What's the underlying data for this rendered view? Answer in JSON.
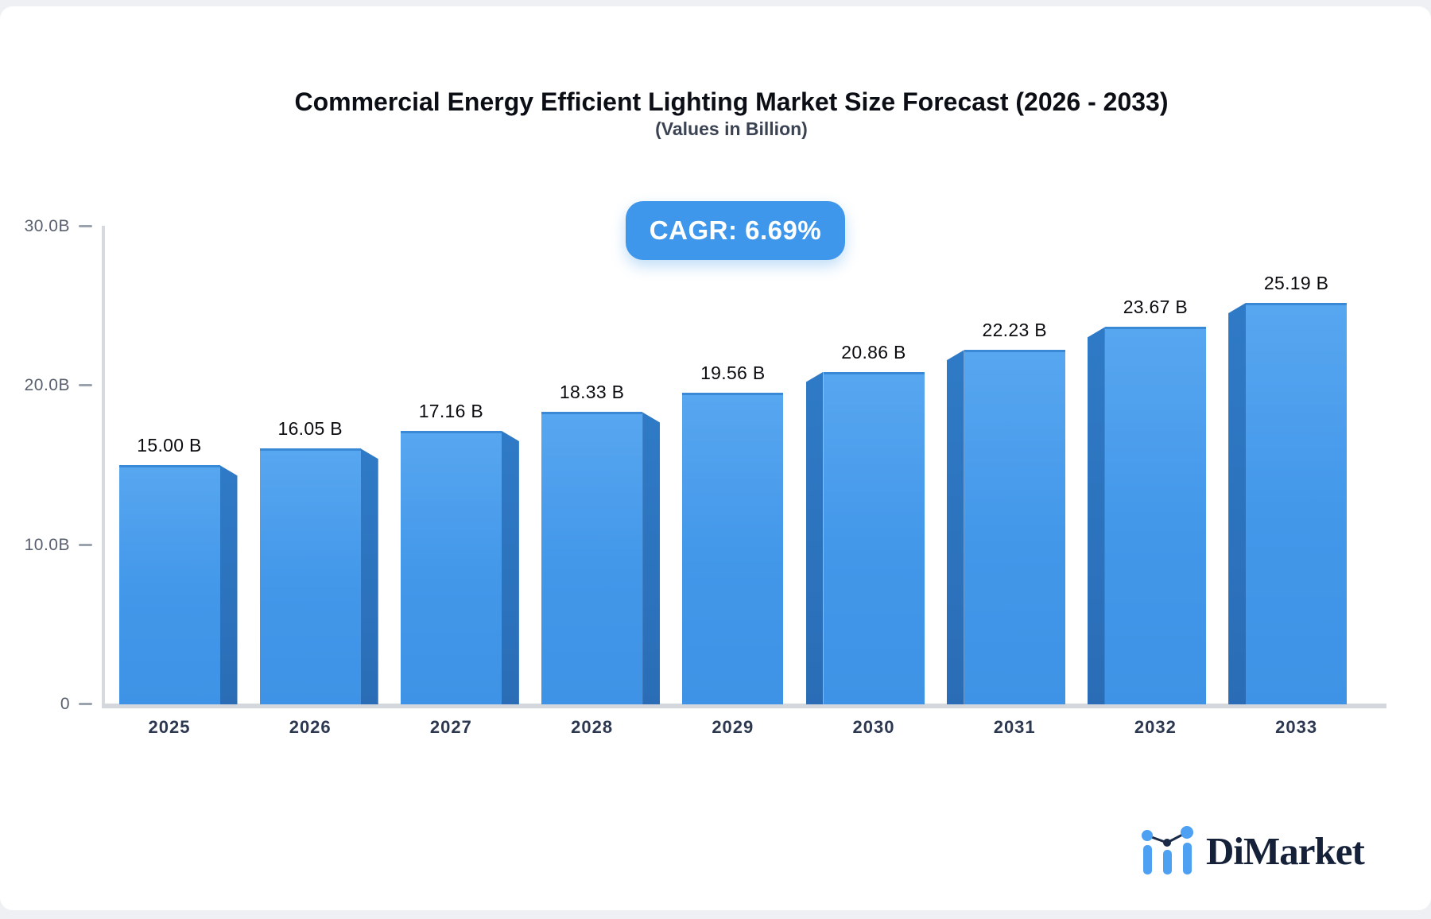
{
  "page": {
    "title": "Commercial Energy Efficient Lighting Market Size Forecast (2026 - 2033)",
    "subtitle": "(Values in Billion)",
    "badge_label": "CAGR: 6.69%"
  },
  "chart_data": {
    "type": "bar",
    "title": "Commercial Energy Efficient Lighting Market Size Forecast (2026 - 2033)",
    "subtitle": "(Values in Billion)",
    "cagr": "6.69%",
    "categories": [
      "2025",
      "2026",
      "2027",
      "2028",
      "2029",
      "2030",
      "2031",
      "2032",
      "2033"
    ],
    "values": [
      15.0,
      16.05,
      17.16,
      18.33,
      19.56,
      20.86,
      22.23,
      23.67,
      25.19
    ],
    "value_labels": [
      "15.00 B",
      "16.05 B",
      "17.16 B",
      "18.33 B",
      "19.56 B",
      "20.86 B",
      "22.23 B",
      "23.67 B",
      "25.19 B"
    ],
    "value_unit": "B",
    "xlabel": "",
    "ylabel": "",
    "ylim": [
      0,
      30
    ],
    "y_ticks": [
      {
        "label": "30.0B",
        "value": 30
      },
      {
        "label": "20.0B",
        "value": 20
      },
      {
        "label": "10.0B",
        "value": 10
      },
      {
        "label": "0",
        "value": 0
      }
    ],
    "grid": "off",
    "legend": "none",
    "bar_color": "#459AEA",
    "bar_side_color": "#2D75C0"
  },
  "branding": {
    "logo_text": "DiMarket",
    "logo_icon": "bar-chart-trend-icon",
    "logo_icon_color": "#4DA0F2",
    "logo_text_color": "#152138"
  }
}
